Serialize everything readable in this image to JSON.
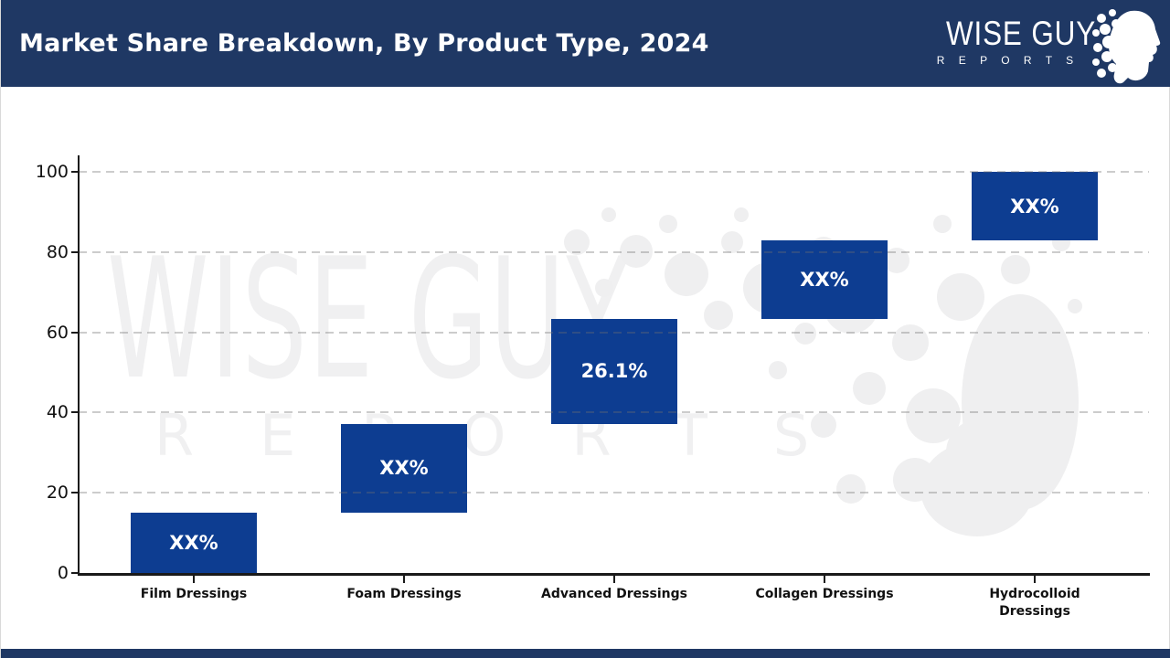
{
  "header": {
    "title": "Market Share Breakdown, By Product Type, 2024",
    "logo": {
      "line1": "WISE GUY",
      "line2": "R E P O R T S"
    }
  },
  "watermark": {
    "line1": "WISE GUY",
    "line2": "REPORTS"
  },
  "footer": {},
  "chart_data": {
    "type": "bar",
    "subtype": "floating-waterfall",
    "title": "Market Share Breakdown, By Product Type, 2024",
    "categories": [
      "Film Dressings",
      "Foam Dressings",
      "Advanced Dressings",
      "Collagen Dressings",
      "Hydrocolloid Dressings"
    ],
    "segments": [
      {
        "category": "Film Dressings",
        "start": 0,
        "end": 15,
        "value_label": "XX%"
      },
      {
        "category": "Foam Dressings",
        "start": 15,
        "end": 37.2,
        "value_label": "XX%"
      },
      {
        "category": "Advanced Dressings",
        "start": 37.2,
        "end": 63.3,
        "value_label": "26.1%",
        "value": 26.1
      },
      {
        "category": "Collagen Dressings",
        "start": 63.3,
        "end": 82.9,
        "value_label": "XX%"
      },
      {
        "category": "Hydrocolloid Dressings",
        "start": 82.9,
        "end": 100,
        "value_label": "XX%"
      }
    ],
    "yticks": [
      0,
      20,
      40,
      60,
      80,
      100
    ],
    "ylim": [
      0,
      104
    ],
    "ylabel": "",
    "xlabel": "",
    "grid": "horizontal-dashed",
    "legend": "none",
    "colors": {
      "bar": "#0d3d91",
      "header_bar": "#1f3864",
      "footer_bar": "#1f3864",
      "bar_label": "#ffffff",
      "axis": "#1a1a1a",
      "watermark": "#f0f0f1"
    }
  }
}
